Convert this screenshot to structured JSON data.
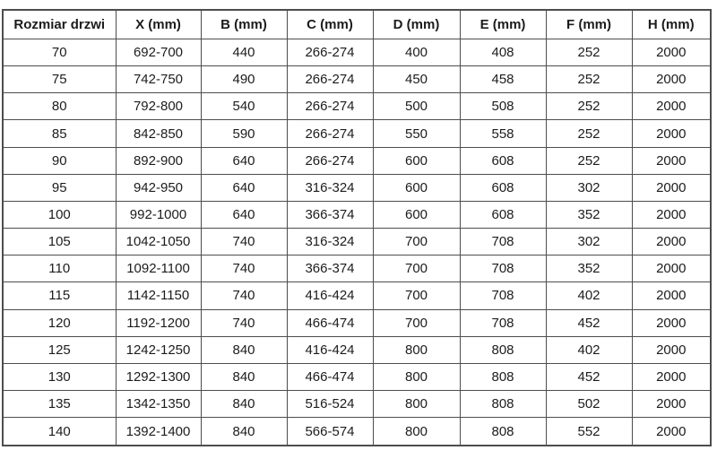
{
  "table": {
    "name": "door-size-spec-table",
    "headers": [
      "Rozmiar drzwi",
      "X (mm)",
      "B (mm)",
      "C (mm)",
      "D (mm)",
      "E (mm)",
      "F (mm)",
      "H (mm)"
    ],
    "rows": [
      [
        "70",
        "692-700",
        "440",
        "266-274",
        "400",
        "408",
        "252",
        "2000"
      ],
      [
        "75",
        "742-750",
        "490",
        "266-274",
        "450",
        "458",
        "252",
        "2000"
      ],
      [
        "80",
        "792-800",
        "540",
        "266-274",
        "500",
        "508",
        "252",
        "2000"
      ],
      [
        "85",
        "842-850",
        "590",
        "266-274",
        "550",
        "558",
        "252",
        "2000"
      ],
      [
        "90",
        "892-900",
        "640",
        "266-274",
        "600",
        "608",
        "252",
        "2000"
      ],
      [
        "95",
        "942-950",
        "640",
        "316-324",
        "600",
        "608",
        "302",
        "2000"
      ],
      [
        "100",
        "992-1000",
        "640",
        "366-374",
        "600",
        "608",
        "352",
        "2000"
      ],
      [
        "105",
        "1042-1050",
        "740",
        "316-324",
        "700",
        "708",
        "302",
        "2000"
      ],
      [
        "110",
        "1092-1100",
        "740",
        "366-374",
        "700",
        "708",
        "352",
        "2000"
      ],
      [
        "115",
        "1142-1150",
        "740",
        "416-424",
        "700",
        "708",
        "402",
        "2000"
      ],
      [
        "120",
        "1192-1200",
        "740",
        "466-474",
        "700",
        "708",
        "452",
        "2000"
      ],
      [
        "125",
        "1242-1250",
        "840",
        "416-424",
        "800",
        "808",
        "402",
        "2000"
      ],
      [
        "130",
        "1292-1300",
        "840",
        "466-474",
        "800",
        "808",
        "452",
        "2000"
      ],
      [
        "135",
        "1342-1350",
        "840",
        "516-524",
        "800",
        "808",
        "502",
        "2000"
      ],
      [
        "140",
        "1392-1400",
        "840",
        "566-574",
        "800",
        "808",
        "552",
        "2000"
      ]
    ]
  },
  "colors": {
    "border": "#4d4d4d",
    "text": "#1c1c1c",
    "background": "#ffffff"
  }
}
